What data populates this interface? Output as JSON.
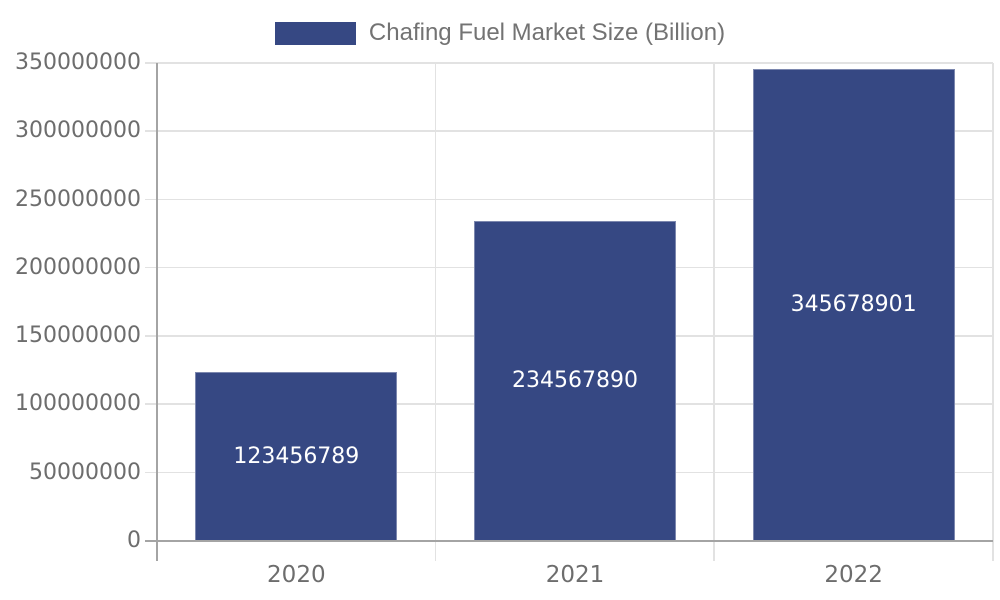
{
  "chart_data": {
    "type": "bar",
    "title": "Chafing Fuel Market Size (Billion)",
    "categories": [
      "2020",
      "2021",
      "2022"
    ],
    "values": [
      123456789,
      234567890,
      345678901
    ],
    "series": [
      {
        "name": "Chafing Fuel Market Size (Billion)",
        "values": [
          123456789,
          234567890,
          345678901
        ]
      }
    ],
    "value_labels": [
      "123456789",
      "234567890",
      "345678901"
    ],
    "yticks": [
      0,
      50000000,
      100000000,
      150000000,
      200000000,
      250000000,
      300000000,
      350000000
    ],
    "ylim": [
      0,
      350000000
    ],
    "xlabel": "",
    "ylabel": "",
    "grid": true,
    "legend_position": "top-center",
    "value_labels_inside_bars": true,
    "colors": {
      "bar": "#364883",
      "bar_value_label": "#ffffff",
      "grid": "#e2e2e2",
      "axis": "#a4a4a4",
      "tick_label": "#6d6d6d",
      "title": "#737373",
      "background": "#ffffff"
    }
  }
}
